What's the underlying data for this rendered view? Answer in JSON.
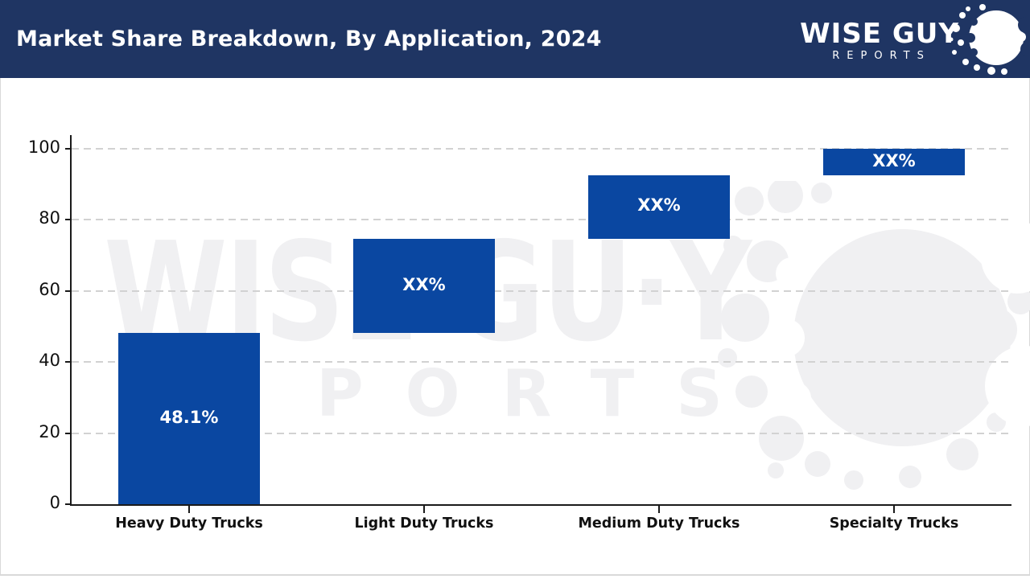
{
  "header": {
    "title": "Market Share Breakdown, By Application, 2024",
    "logo": {
      "wordmark": "WISE GUY",
      "subtext": "REPORTS"
    }
  },
  "watermark": {
    "wordmark": "WISE GU·Y",
    "subtext": "PORTS"
  },
  "chart_data": {
    "type": "bar",
    "subtype": "waterfall",
    "title": "Market Share Breakdown, By Application, 2024",
    "categories": [
      "Heavy Duty Trucks",
      "Light Duty Trucks",
      "Medium Duty Trucks",
      "Specialty Trucks"
    ],
    "segments": [
      {
        "category": "Heavy Duty Trucks",
        "start": 0,
        "end": 48.1,
        "label": "48.1%"
      },
      {
        "category": "Light Duty Trucks",
        "start": 48.1,
        "end": 74.7,
        "label": "XX%"
      },
      {
        "category": "Medium Duty Trucks",
        "start": 74.7,
        "end": 92.5,
        "label": "XX%"
      },
      {
        "category": "Specialty Trucks",
        "start": 92.5,
        "end": 100,
        "label": "XX%"
      }
    ],
    "yticks": [
      0,
      20,
      40,
      60,
      80,
      100
    ],
    "ylim": [
      0,
      104
    ],
    "xlabel": "",
    "ylabel": "",
    "grid": "horizontal-dashed",
    "legend": "none",
    "bar_color": "#0a47a1",
    "bar_label_color": "#ffffff",
    "axis_color": "#1a1a1a",
    "gridline_color": "#d2d2d2",
    "header_color": "#1f3563",
    "watermark_color": "#f0f0f2"
  }
}
